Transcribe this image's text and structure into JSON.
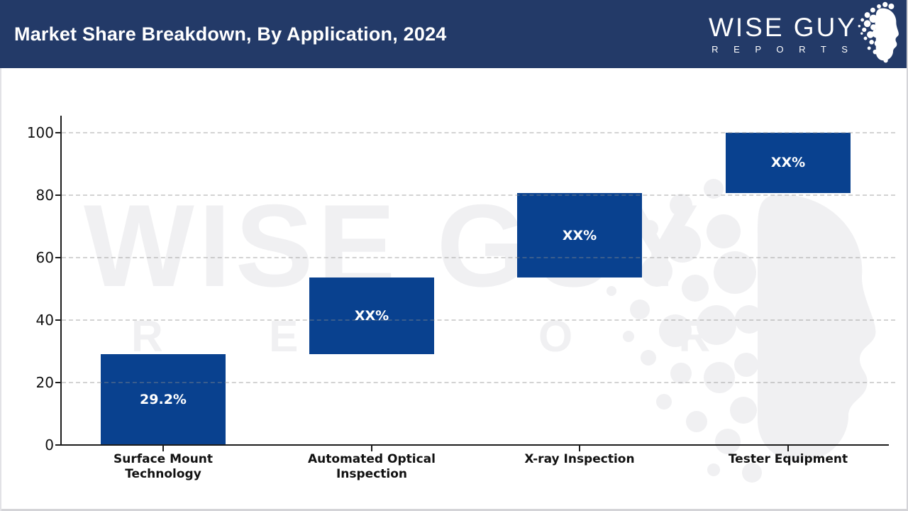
{
  "colors": {
    "header_bg": "#233a68",
    "bar": "#09418f",
    "axis": "#1c1c1c",
    "grid": "#d5d5d5",
    "watermark": "#f0f0f2",
    "bar_label": "#ffffff",
    "title_text": "#ffffff"
  },
  "header": {
    "title": "Market Share Breakdown, By Application, 2024",
    "logo": {
      "name": "WISE GUY",
      "sub": "R E P O R T S"
    }
  },
  "watermark": {
    "line1": "WISE GUY",
    "line2": "R E P O R T S"
  },
  "chart_data": {
    "type": "bar",
    "subtype": "waterfall",
    "title": "Market Share Breakdown, By Application, 2024",
    "categories": [
      "Surface Mount Technology",
      "Automated Optical Inspection",
      "X-ray Inspection",
      "Tester Equipment"
    ],
    "segments": [
      {
        "category": "Surface Mount Technology",
        "start": 0,
        "end": 29.2,
        "label": "29.2%"
      },
      {
        "category": "Automated Optical Inspection",
        "start": 29.2,
        "end": 53.6,
        "label": "XX%"
      },
      {
        "category": "X-ray Inspection",
        "start": 53.6,
        "end": 80.7,
        "label": "XX%"
      },
      {
        "category": "Tester Equipment",
        "start": 80.7,
        "end": 100,
        "label": "XX%"
      }
    ],
    "y_ticks": [
      0,
      20,
      40,
      60,
      80,
      100
    ],
    "ylim": [
      0,
      105
    ],
    "grid": "horizontal-dashed-over-bars",
    "legend": "none",
    "bar_color": "#09418f",
    "bar_label_color": "#ffffff"
  }
}
